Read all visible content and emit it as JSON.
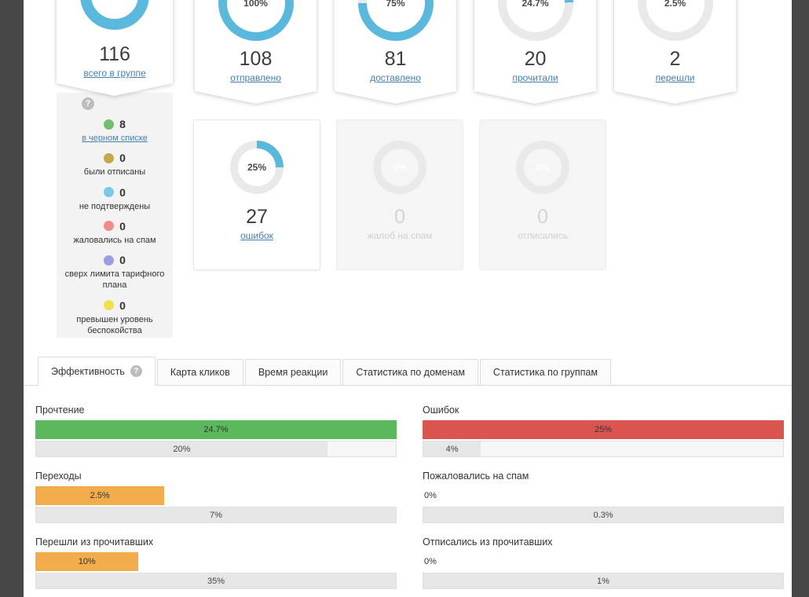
{
  "colors": {
    "donut_blue": "#5ab8dc",
    "donut_gray": "#e9e9e9",
    "link_blue": "#4580ad",
    "green": "#5cb85c",
    "red": "#db5550",
    "orange": "#f2ac49"
  },
  "icons": {
    "help": "?"
  },
  "summary_cards": [
    {
      "value": "116",
      "label": "всего в группе",
      "ring_percent": 100
    },
    {
      "percent": "100%",
      "value": "108",
      "label": "отправлено",
      "ring_percent": 100
    },
    {
      "percent": "75%",
      "value": "81",
      "label": "доставлено",
      "ring_percent": 75
    },
    {
      "percent": "24.7%",
      "value": "20",
      "label": "прочитали",
      "ring_percent": 24.7
    },
    {
      "percent": "2.5%",
      "value": "2",
      "label": "перешли",
      "ring_percent": 2.5
    }
  ],
  "legend": {
    "items": [
      {
        "color": "#6fbf6f",
        "value": "8",
        "label": "в черном списке"
      },
      {
        "color": "#c8a84b",
        "value": "0",
        "label": "были отписаны"
      },
      {
        "color": "#7ec6e6",
        "value": "0",
        "label": "не подтверждены"
      },
      {
        "color": "#ee8c8c",
        "value": "0",
        "label": "жаловались на спам"
      },
      {
        "color": "#9d9de4",
        "value": "0",
        "label": "сверх лимита тарифного плана"
      },
      {
        "color": "#efe04e",
        "value": "0",
        "label": "превышен уровень беспокойства"
      }
    ]
  },
  "secondary_cards": [
    {
      "percent": "25%",
      "value": "27",
      "label": "ошибок",
      "ring_percent": 25
    },
    {
      "percent": "0%",
      "value": "0",
      "label": "жалоб на спам",
      "ring_percent": 0
    },
    {
      "percent": "0%",
      "value": "0",
      "label": "отписались",
      "ring_percent": 0
    }
  ],
  "tabs": [
    {
      "label": "Эффективность"
    },
    {
      "label": "Карта кликов"
    },
    {
      "label": "Время реакции"
    },
    {
      "label": "Статистика по доменам"
    },
    {
      "label": "Статистика по группам"
    }
  ],
  "chart_data": {
    "type": "bar",
    "groups": [
      {
        "metrics": [
          {
            "label": "Прочтение",
            "value_label": "24.7%",
            "value": 24.7,
            "color_key": "green",
            "compare_label": "20%",
            "compare": 20
          },
          {
            "label": "Переходы",
            "value_label": "2.5%",
            "value": 2.5,
            "color_key": "orange",
            "compare_label": "7%",
            "compare": 7
          },
          {
            "label": "Перешли из прочитавших",
            "value_label": "10%",
            "value": 10,
            "color_key": "orange",
            "compare_label": "35%",
            "compare": 35
          }
        ]
      },
      {
        "metrics": [
          {
            "label": "Ошибок",
            "value_label": "25%",
            "value": 25,
            "color_key": "red",
            "compare_label": "4%",
            "compare": 4
          },
          {
            "label": "Пожаловались на спам",
            "value_label": "0%",
            "value": 0,
            "color_key": null,
            "compare_label": "0.3%",
            "compare": 0.3
          },
          {
            "label": "Отписались из прочитавших",
            "value_label": "0%",
            "value": 0,
            "color_key": null,
            "compare_label": "1%",
            "compare": 1
          }
        ]
      }
    ]
  }
}
